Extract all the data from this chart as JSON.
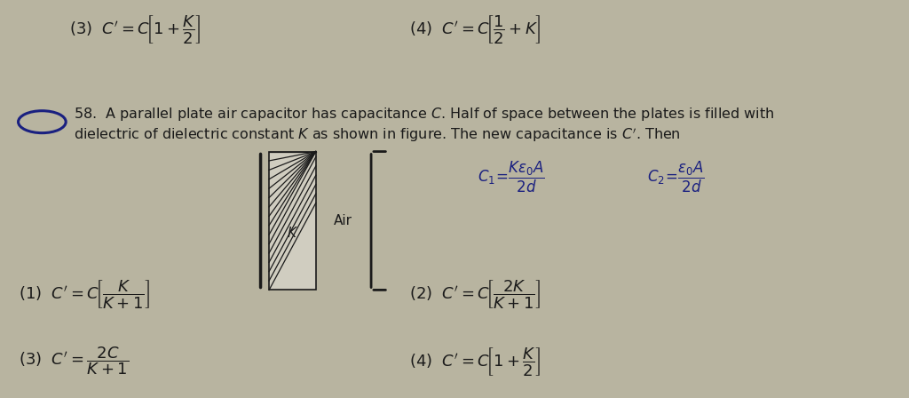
{
  "bg_color": "#b8b4a0",
  "text_color": "#1a1a1a",
  "blue_color": "#1a2080",
  "fig_width": 10.24,
  "fig_height": 4.48,
  "dpi": 100
}
